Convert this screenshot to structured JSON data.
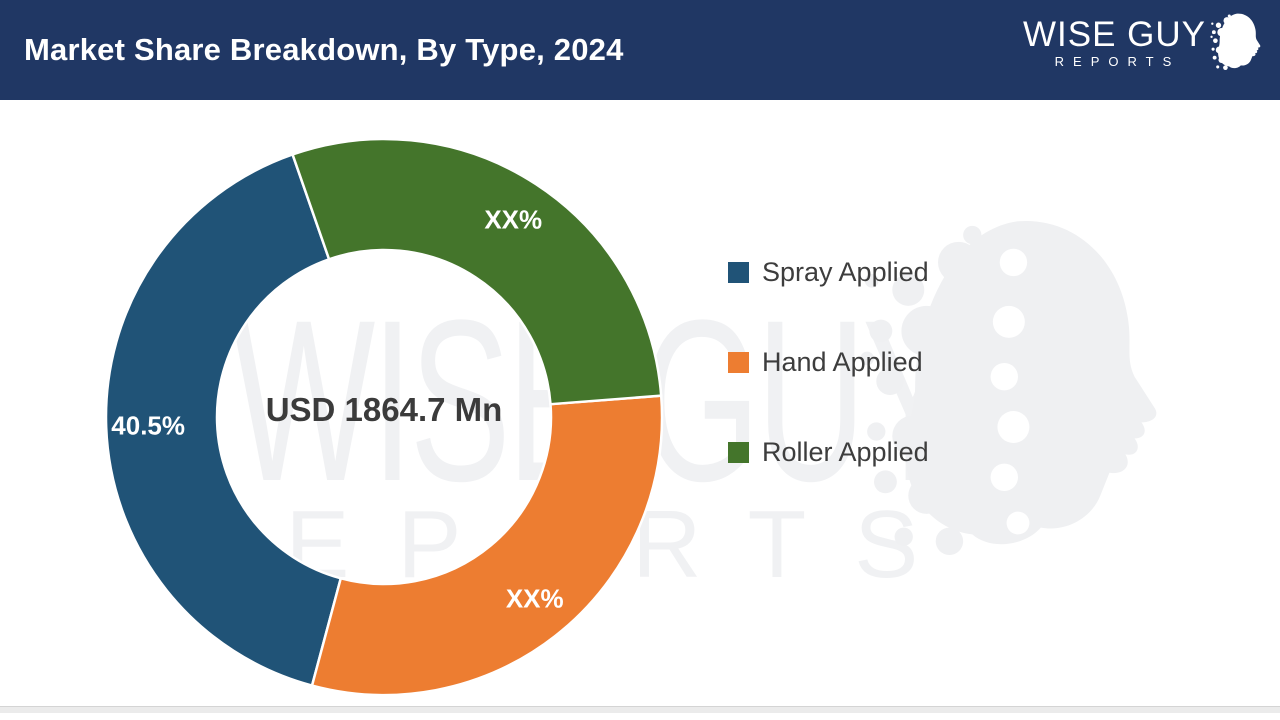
{
  "header": {
    "title": "Market Share Breakdown, By Type, 2024",
    "logo": {
      "brand_line1": "WISE GUY",
      "brand_line2": "REPORTS"
    }
  },
  "watermark": {
    "line1": "WISE GUY",
    "line2": "REPORTS"
  },
  "chart_data": {
    "type": "pie",
    "subtype": "donut",
    "title": "Market Share Breakdown, By Type, 2024",
    "center_label": "USD 1864.7 Mn",
    "total_value": "1864.7",
    "unit": "USD Mn",
    "inner_radius_ratio": 0.6,
    "legend_position": "right",
    "slices": [
      {
        "label": "Spray Applied",
        "value_pct": 40.5,
        "display_label": "40.5%",
        "color": "#205377",
        "start_deg": 195.0,
        "end_deg": 340.8
      },
      {
        "label": "Hand Applied",
        "value_pct": 30.4,
        "display_label": "XX%",
        "color": "#ED7D31",
        "start_deg": 85.6,
        "end_deg": 195.0
      },
      {
        "label": "Roller Applied",
        "value_pct": 29.1,
        "display_label": "XX%",
        "color": "#44752B",
        "start_deg": -19.2,
        "end_deg": 85.6
      }
    ]
  },
  "colors": {
    "header_bg": "#203764",
    "text_dark": "#3b3b3b",
    "watermark": "#f0f1f3",
    "slice_label": "#ffffff"
  }
}
